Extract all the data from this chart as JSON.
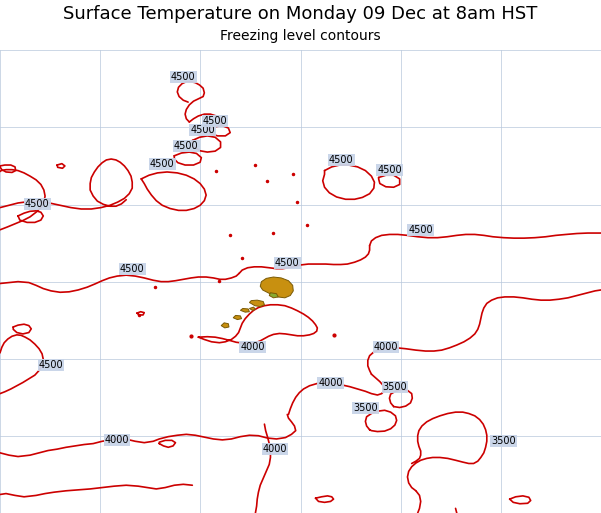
{
  "title": "Surface Temperature on Monday 09 Dec at 8am HST",
  "subtitle": "Freezing level contours",
  "map_bg": "#c8d4e8",
  "header_bg": "#ffffff",
  "border_color": "#b8a060",
  "contour_color": "#cc0000",
  "label_bg": "#c8d4e8",
  "title_fontsize": 13,
  "subtitle_fontsize": 10,
  "label_fontsize": 7,
  "figsize": [
    6.01,
    5.13
  ],
  "dpi": 100,
  "grid_color": "#b8c8dc",
  "island_color_big": "#c89010",
  "island_color_green": "#88aa30"
}
